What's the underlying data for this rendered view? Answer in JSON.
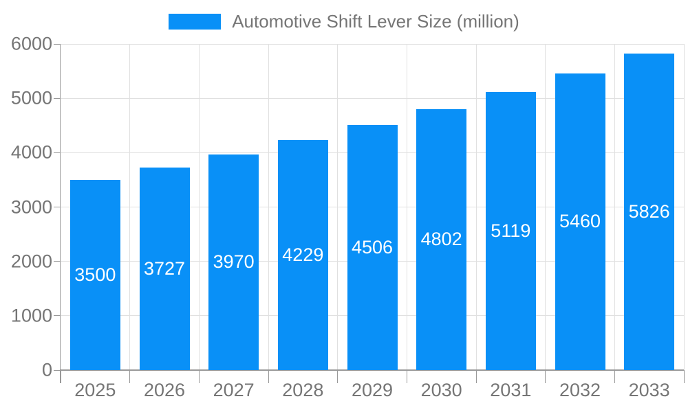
{
  "colors": {
    "bar": "#0990F7",
    "grid": "#E0E0E0",
    "axis": "#999999",
    "text": "#757575",
    "bar_label": "#FFFFFF",
    "background": "#FFFFFF"
  },
  "legend": {
    "label": "Automotive Shift Lever Size (million)"
  },
  "chart_data": {
    "type": "bar",
    "title": "Automotive Shift Lever Size (million)",
    "categories": [
      "2025",
      "2026",
      "2027",
      "2028",
      "2029",
      "2030",
      "2031",
      "2032",
      "2033"
    ],
    "values": [
      3500,
      3727,
      3970,
      4229,
      4506,
      4802,
      5119,
      5460,
      5826
    ],
    "xlabel": "",
    "ylabel": "",
    "ylim": [
      0,
      6000
    ],
    "yticks": [
      0,
      1000,
      2000,
      3000,
      4000,
      5000,
      6000
    ],
    "grid": true,
    "legend_position": "top",
    "bar_labels_inside": true
  }
}
